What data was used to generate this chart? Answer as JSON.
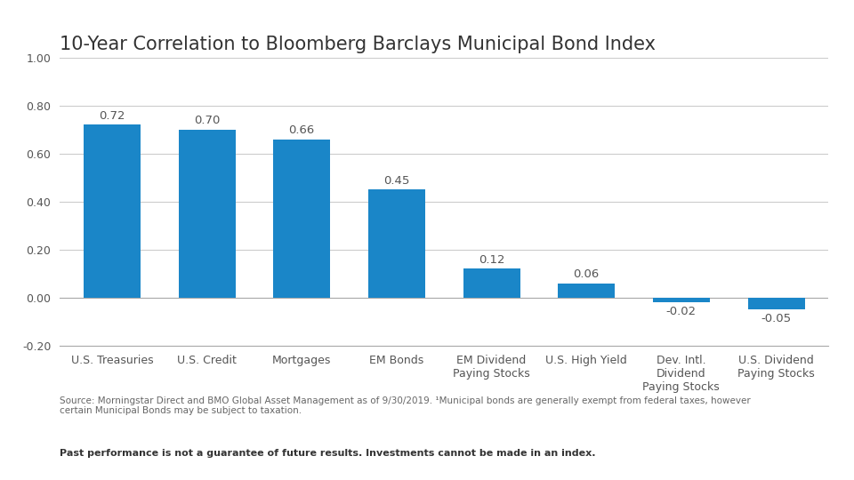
{
  "title": "10-Year Correlation to Bloomberg Barclays Municipal Bond Index",
  "categories": [
    "U.S. Treasuries",
    "U.S. Credit",
    "Mortgages",
    "EM Bonds",
    "EM Dividend\nPaying Stocks",
    "U.S. High Yield",
    "Dev. Intl.\nDividend\nPaying Stocks",
    "U.S. Dividend\nPaying Stocks"
  ],
  "values": [
    0.72,
    0.7,
    0.66,
    0.45,
    0.12,
    0.06,
    -0.02,
    -0.05
  ],
  "bar_color": "#1a86c8",
  "ylim": [
    -0.2,
    1.0
  ],
  "yticks": [
    -0.2,
    0.0,
    0.2,
    0.4,
    0.6,
    0.8,
    1.0
  ],
  "background_color": "#ffffff",
  "title_fontsize": 15,
  "label_fontsize": 9.5,
  "tick_fontsize": 9,
  "source_text": "Source: Morningstar Direct and BMO Global Asset Management as of 9/30/2019. ¹Municipal bonds are generally exempt from federal taxes, however\ncertain Municipal Bonds may be subject to taxation.",
  "footnote_text": "Past performance is not a guarantee of future results. Investments cannot be made in an index.",
  "source_fontsize": 7.5,
  "footnote_fontsize": 8
}
